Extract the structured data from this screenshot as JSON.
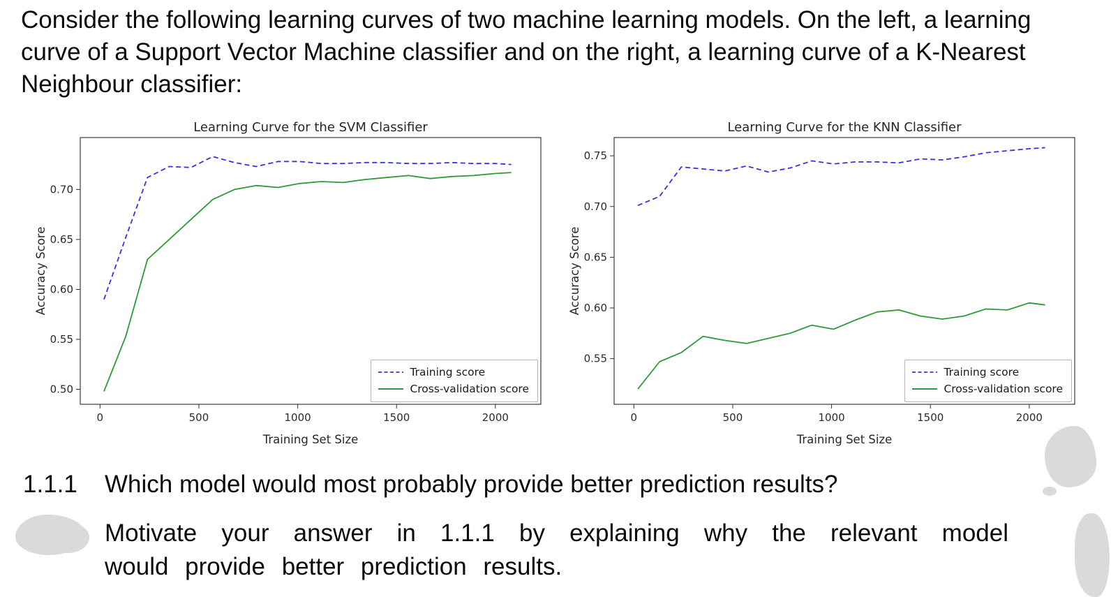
{
  "header": {
    "paragraph": "Consider the following learning curves of two machine learning models. On the left, a learning curve of a Support Vector Machine classifier and on the right, a learning curve of a K-Nearest Neighbour classifier:"
  },
  "question": {
    "number": "1.1.1",
    "text": "Which model would most probably provide better prediction results?",
    "followup": "Motivate your answer in 1.1.1 by explaining why the relevant model would provide better prediction results."
  },
  "colors": {
    "training_score_line": "#3232ec",
    "cross_validation_line": "#2a9c35",
    "axis_text": "#262626"
  },
  "chart_data": [
    {
      "type": "line",
      "title": "Learning Curve for the SVM Classifier",
      "xlabel": "Training Set Size",
      "ylabel": "Accuracy Score",
      "xlim": [
        -100,
        2230
      ],
      "ylim": [
        0.485,
        0.752
      ],
      "xticks": [
        0,
        500,
        1000,
        1500,
        2000
      ],
      "yticks": [
        "0.50",
        "0.55",
        "0.60",
        "0.65",
        "0.70"
      ],
      "grid": false,
      "legend_location": "lower right",
      "x": [
        20,
        130,
        240,
        350,
        460,
        570,
        680,
        790,
        900,
        1010,
        1120,
        1230,
        1340,
        1450,
        1560,
        1670,
        1780,
        1890,
        2000,
        2080
      ],
      "series": [
        {
          "name": "Training score",
          "style": "dashed",
          "color": "#3232ec",
          "values": [
            0.59,
            0.652,
            0.712,
            0.723,
            0.722,
            0.733,
            0.727,
            0.723,
            0.728,
            0.728,
            0.726,
            0.726,
            0.727,
            0.727,
            0.726,
            0.726,
            0.727,
            0.726,
            0.726,
            0.725
          ]
        },
        {
          "name": "Cross-validation score",
          "style": "solid",
          "color": "#2a9c35",
          "values": [
            0.498,
            0.553,
            0.63,
            0.65,
            0.67,
            0.69,
            0.7,
            0.704,
            0.702,
            0.706,
            0.708,
            0.707,
            0.71,
            0.712,
            0.714,
            0.711,
            0.713,
            0.714,
            0.716,
            0.717
          ]
        }
      ]
    },
    {
      "type": "line",
      "title": "Learning Curve for the KNN Classifier",
      "xlabel": "Training Set Size",
      "ylabel": "Accuracy Score",
      "xlim": [
        -100,
        2230
      ],
      "ylim": [
        0.505,
        0.768
      ],
      "xticks": [
        0,
        500,
        1000,
        1500,
        2000
      ],
      "yticks": [
        "0.55",
        "0.60",
        "0.65",
        "0.70",
        "0.75"
      ],
      "grid": false,
      "legend_location": "lower right",
      "x": [
        20,
        130,
        240,
        350,
        460,
        570,
        680,
        790,
        900,
        1010,
        1120,
        1230,
        1340,
        1450,
        1560,
        1670,
        1780,
        1890,
        2000,
        2080
      ],
      "series": [
        {
          "name": "Training score",
          "style": "dashed",
          "color": "#3232ec",
          "values": [
            0.701,
            0.71,
            0.739,
            0.737,
            0.735,
            0.74,
            0.734,
            0.738,
            0.745,
            0.742,
            0.744,
            0.744,
            0.743,
            0.747,
            0.746,
            0.749,
            0.753,
            0.755,
            0.757,
            0.758
          ]
        },
        {
          "name": "Cross-validation score",
          "style": "solid",
          "color": "#2a9c35",
          "values": [
            0.52,
            0.547,
            0.556,
            0.572,
            0.568,
            0.565,
            0.57,
            0.575,
            0.583,
            0.579,
            0.588,
            0.596,
            0.598,
            0.592,
            0.589,
            0.592,
            0.599,
            0.598,
            0.605,
            0.603
          ]
        }
      ]
    }
  ]
}
